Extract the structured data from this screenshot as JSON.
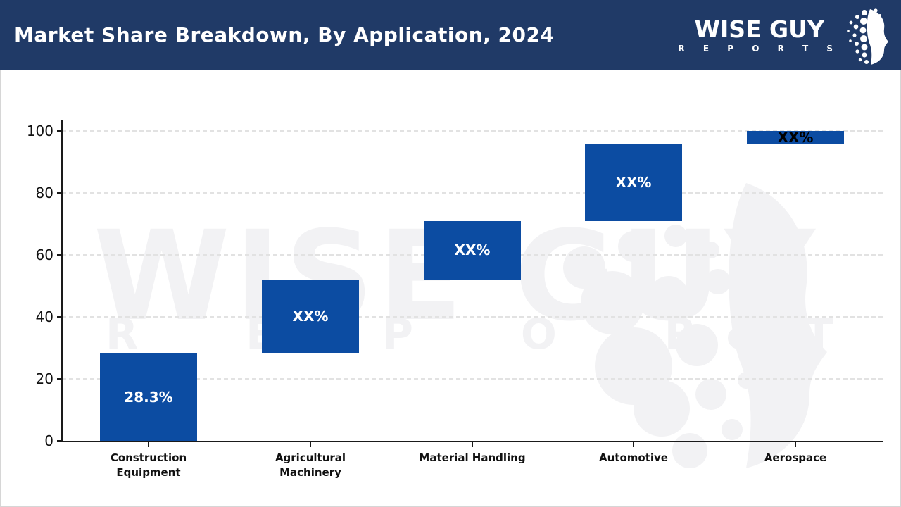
{
  "header": {
    "title": "Market Share Breakdown, By Application, 2024",
    "bg_color": "#203a67",
    "logo": {
      "name": "WISE GUY",
      "sub": "R E P O R T S"
    }
  },
  "watermark": {
    "line1": "WISE GUY",
    "line2": "R E P O R T S"
  },
  "chart_data": {
    "type": "bar",
    "subtype": "waterfall",
    "title": "Market Share Breakdown, By Application, 2024",
    "categories": [
      "Construction Equipment",
      "Agricultural Machinery",
      "Material Handling",
      "Automotive",
      "Aerospace"
    ],
    "segments": [
      {
        "category": "Construction Equipment",
        "start": 0,
        "end": 28.3,
        "label": "28.3%",
        "label_color": "#ffffff"
      },
      {
        "category": "Agricultural Machinery",
        "start": 28.3,
        "end": 52,
        "label": "XX%",
        "label_color": "#ffffff"
      },
      {
        "category": "Material Handling",
        "start": 52,
        "end": 71,
        "label": "XX%",
        "label_color": "#ffffff"
      },
      {
        "category": "Automotive",
        "start": 71,
        "end": 96,
        "label": "XX%",
        "label_color": "#ffffff"
      },
      {
        "category": "Aerospace",
        "start": 96,
        "end": 100,
        "label": "XX%",
        "label_color": "#000000"
      }
    ],
    "yticks": [
      0,
      20,
      40,
      60,
      80,
      100
    ],
    "ylim": [
      0,
      103.6
    ],
    "bar_color": "#0c4ca2",
    "grid": "dashed-horizontal",
    "legend": "none",
    "xlabel": "",
    "ylabel": ""
  }
}
